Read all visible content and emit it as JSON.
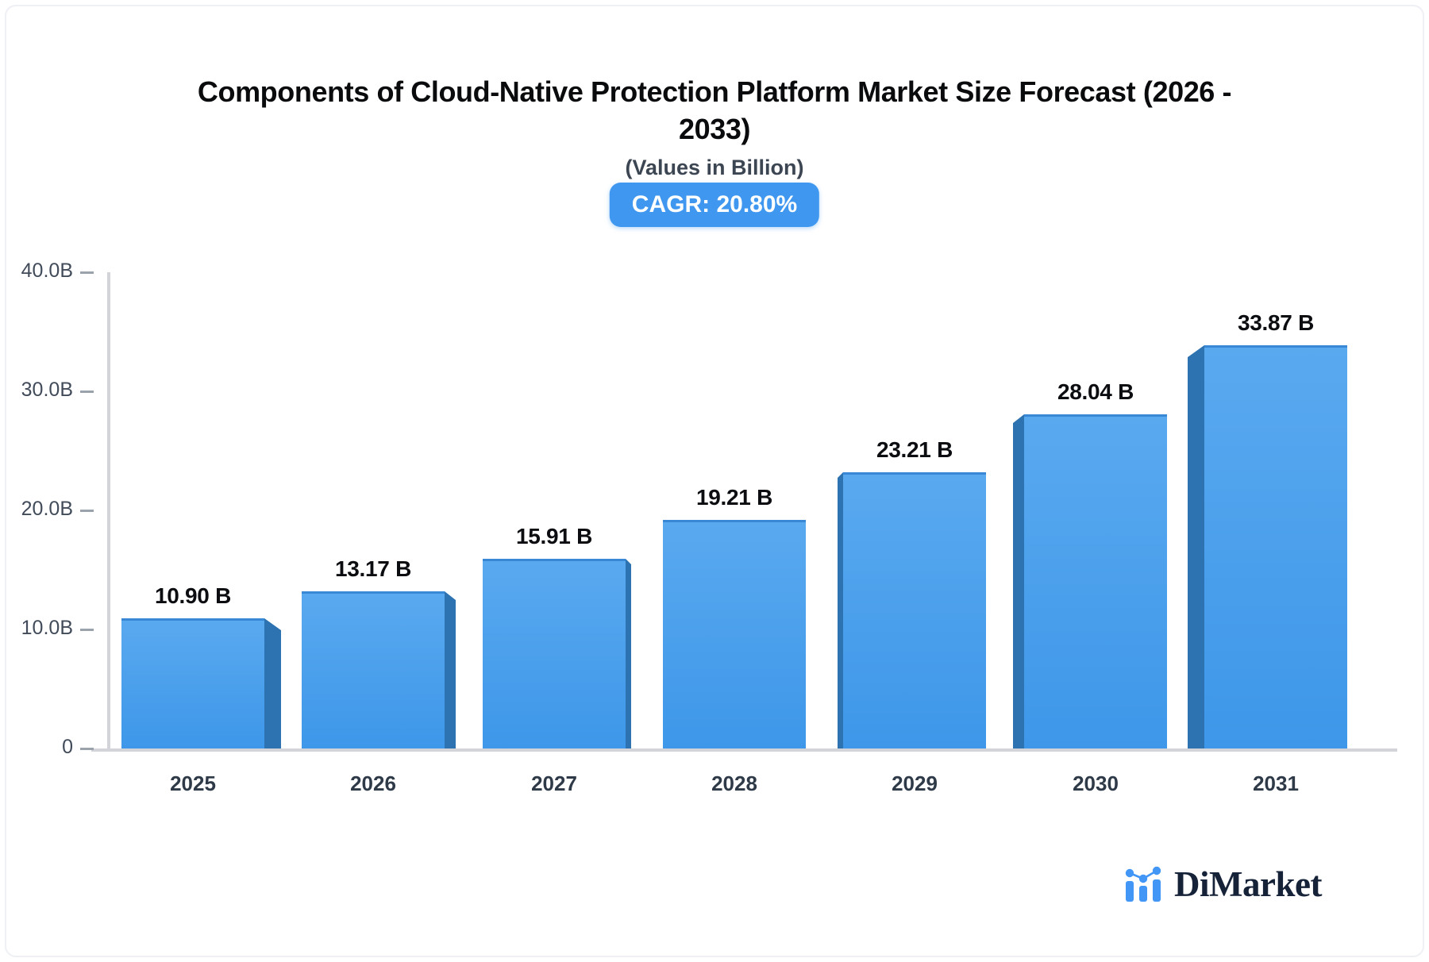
{
  "header": {
    "title_lines": [
      "Components of Cloud-Native Protection Platform Market Size Forecast (2026 -",
      "2033)"
    ],
    "subtitle": "(Values in Billion)",
    "cagr_badge": "CAGR: 20.80%"
  },
  "badge": {
    "bg": "#3f97f0",
    "text_color": "#ffffff"
  },
  "chart_data": {
    "type": "bar",
    "title": "Components of Cloud-Native Protection Platform Market Size Forecast (2026 - 2033)",
    "subtitle": "(Values in Billion)",
    "cagr_percent": 20.8,
    "categories": [
      "2025",
      "2026",
      "2027",
      "2028",
      "2029",
      "2030",
      "2031"
    ],
    "values": [
      10.9,
      13.17,
      15.91,
      19.21,
      23.21,
      28.04,
      33.87
    ],
    "bar_labels": [
      "10.90 B",
      "13.17 B",
      "15.91 B",
      "19.21 B",
      "23.21 B",
      "28.04 B",
      "33.87 B"
    ],
    "unit": "Billion",
    "xlabel": "",
    "ylabel": "",
    "ylim": [
      0,
      40
    ],
    "y_ticks": [
      {
        "value": 40,
        "label": "40.0B"
      },
      {
        "value": 30,
        "label": "30.0B"
      },
      {
        "value": 20,
        "label": "20.0B"
      },
      {
        "value": 10,
        "label": "10.0B"
      },
      {
        "value": 0,
        "label": "0"
      }
    ],
    "grid": false,
    "legend": false,
    "bar_style_3d": true,
    "colors": {
      "bar_face_top": "#59a9ef",
      "bar_face_bottom": "#3e97e9",
      "bar_top_line": "#3988d6",
      "bar_side_3d": "#2d73b1",
      "axis_line": "#d2d4d9",
      "tick_mark": "#9aa2ac",
      "tick_label": "#414b59",
      "value_label": "#0c0d10",
      "category_label": "#2f3a48"
    }
  },
  "logo": {
    "text": "DiMarket",
    "icon": "mini-bar-chart-with-dots-icon",
    "icon_color": "#4196f6",
    "text_color": "#152238"
  }
}
